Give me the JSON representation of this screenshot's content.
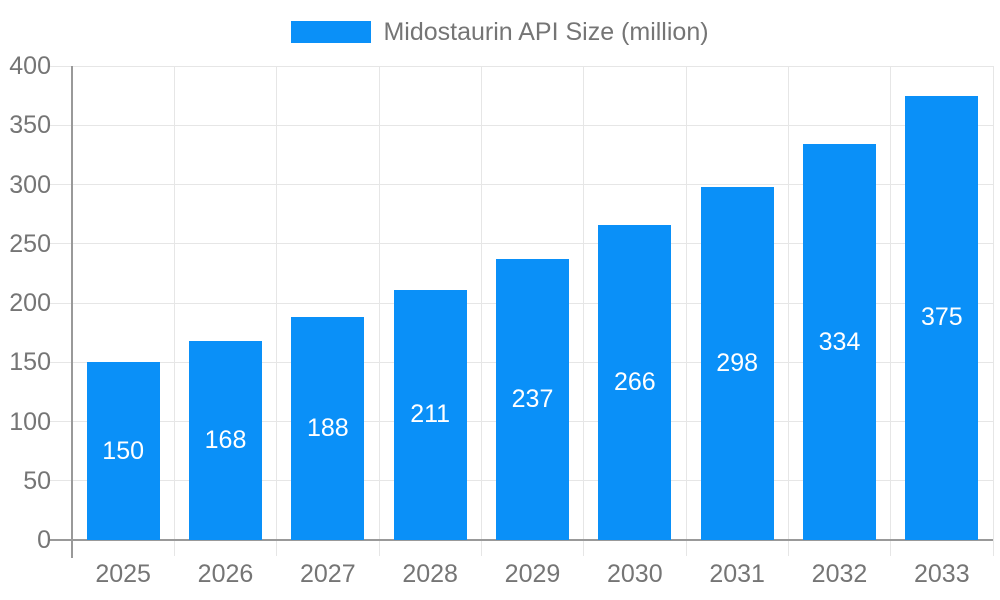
{
  "chart_data": {
    "type": "bar",
    "title": "Midostaurin API Size (million)",
    "series_name": "Midostaurin API Size (million)",
    "categories": [
      "2025",
      "2026",
      "2027",
      "2028",
      "2029",
      "2030",
      "2031",
      "2032",
      "2033"
    ],
    "values": [
      150,
      168,
      188,
      211,
      237,
      266,
      298,
      334,
      375
    ],
    "value_labels": [
      "150",
      "168",
      "188",
      "211",
      "237",
      "266",
      "298",
      "334",
      "375"
    ],
    "xlabel": "",
    "ylabel": "",
    "ylim": [
      0,
      400
    ],
    "ytick_step": 50,
    "yticks": [
      "0",
      "50",
      "100",
      "150",
      "200",
      "250",
      "300",
      "350",
      "400"
    ],
    "grid": true,
    "legend_position": "top-center",
    "value_label_position": "inside-center",
    "colors": {
      "bar": "#0A90F8",
      "gridline": "#E6E6E6",
      "axis_line": "#999999",
      "tick_label": "#757575",
      "value_label": "#FFFFFF",
      "background": "#FFFFFF"
    }
  }
}
